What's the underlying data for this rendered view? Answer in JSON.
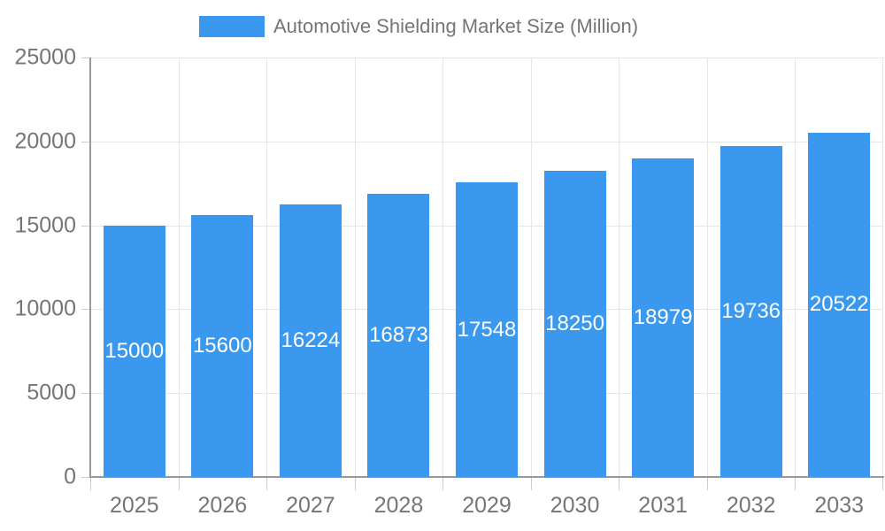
{
  "chart_data": {
    "type": "bar",
    "title": "Automotive Shielding Market Size (Million)",
    "categories": [
      "2025",
      "2026",
      "2027",
      "2028",
      "2029",
      "2030",
      "2031",
      "2032",
      "2033"
    ],
    "values": [
      15000,
      15600,
      16224,
      16873,
      17548,
      18250,
      18979,
      19736,
      20522
    ],
    "xlabel": "",
    "ylabel": "",
    "ylim": [
      0,
      25000
    ],
    "yticks": [
      0,
      5000,
      10000,
      15000,
      20000,
      25000
    ],
    "grid": true,
    "legend_position": "top",
    "bar_labels": "centered-white",
    "colors": {
      "bar": "#3a99ee",
      "grid": "#e6e6e6",
      "axis": "#999999",
      "tick": "#cccccc",
      "text": "#757575",
      "bar_label": "#ffffff"
    }
  }
}
